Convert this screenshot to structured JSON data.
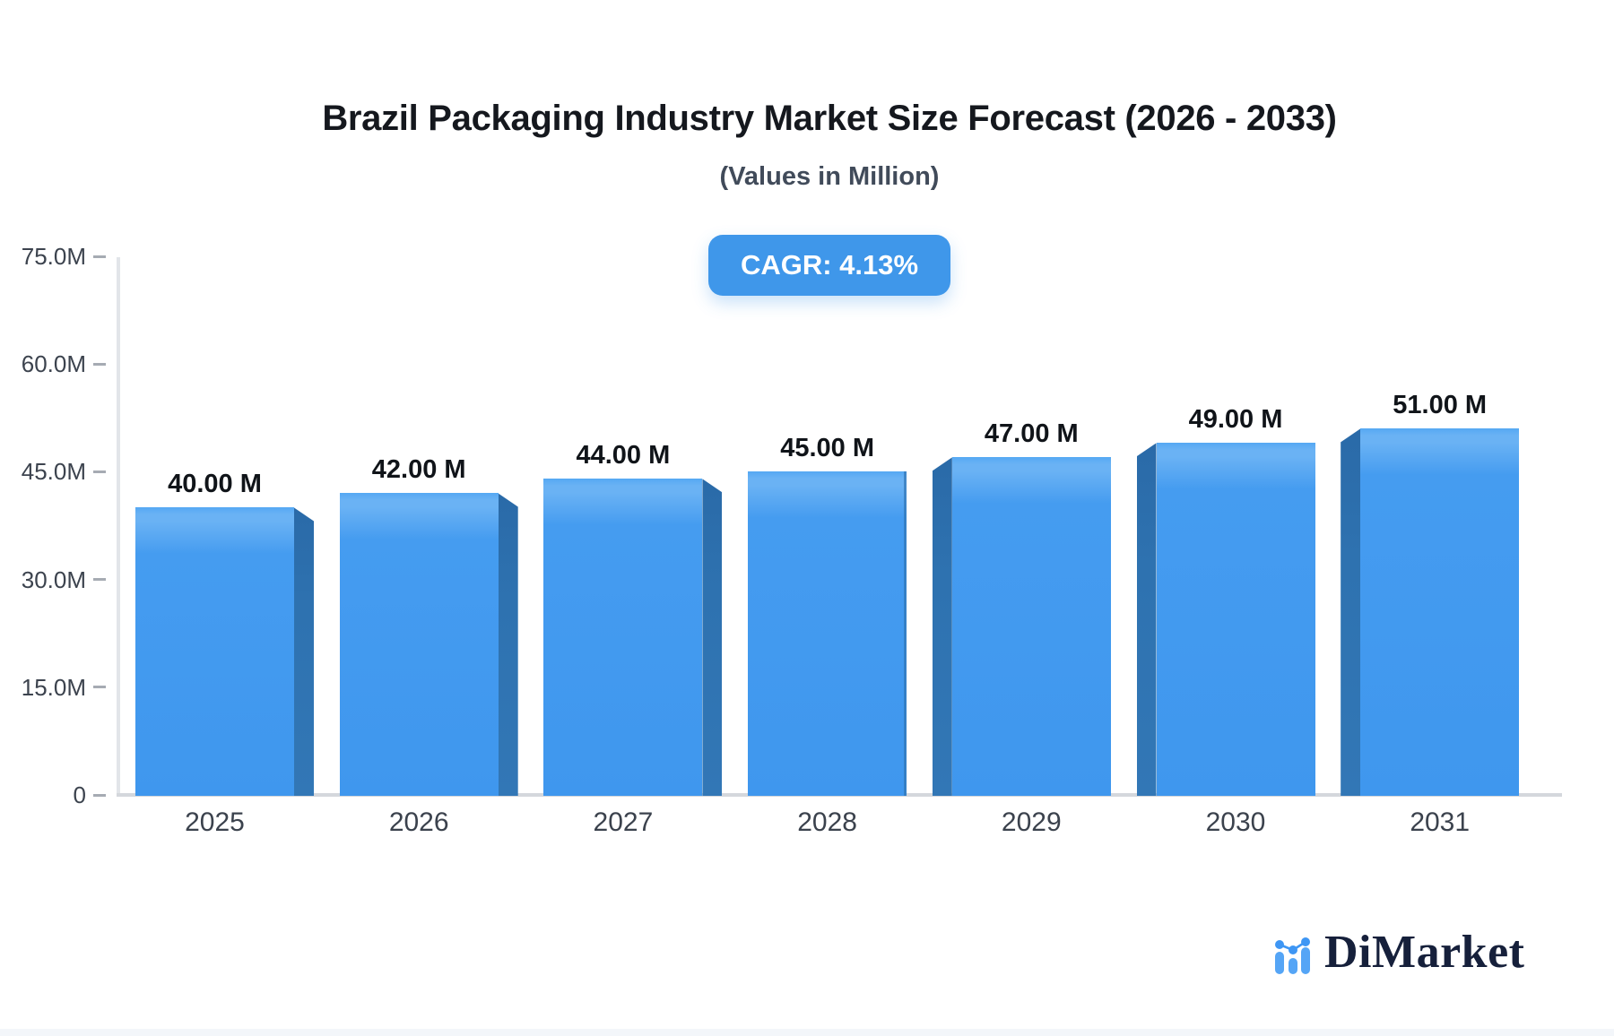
{
  "badge": {
    "label": "CAGR: 4.13%"
  },
  "chart_data": {
    "type": "bar",
    "title": "Brazil Packaging Industry Market Size Forecast (2026 - 2033)",
    "subtitle": "(Values in Million)",
    "cagr": "4.13%",
    "unit": "Million",
    "categories": [
      "2025",
      "2026",
      "2027",
      "2028",
      "2029",
      "2030",
      "2031"
    ],
    "values": [
      40,
      42,
      44,
      45,
      47,
      49,
      51
    ],
    "value_labels": [
      "40.00 M",
      "42.00 M",
      "44.00 M",
      "45.00 M",
      "47.00 M",
      "49.00 M",
      "51.00 M"
    ],
    "xlabel": "",
    "ylabel": "",
    "ylim": [
      0,
      75
    ],
    "y_ticks": [
      {
        "value": 75,
        "label": "75.0M"
      },
      {
        "value": 60,
        "label": "60.0M"
      },
      {
        "value": 45,
        "label": "45.0M"
      },
      {
        "value": 30,
        "label": "30.0M"
      },
      {
        "value": 15,
        "label": "15.0M"
      },
      {
        "value": 0,
        "label": "0"
      }
    ],
    "grid": false,
    "legend_position": "none"
  },
  "logo": {
    "text": "DiMarket"
  },
  "colors": {
    "accent": "#3F97EA",
    "bar_front": "#459CF0",
    "bar_front_light": "#6AB2F4",
    "bar_front_top": "#55A8F3",
    "bar_side": "#2E72B0",
    "bar_side_dark": "#2A6AA8",
    "title_text": "#15181E",
    "subtitle_text": "#414B5A",
    "axis_text": "#3C434E",
    "logo_navy": "#16203B",
    "logo_blue": "#55A5F6",
    "logo_dot_blue": "#3E96F4"
  }
}
